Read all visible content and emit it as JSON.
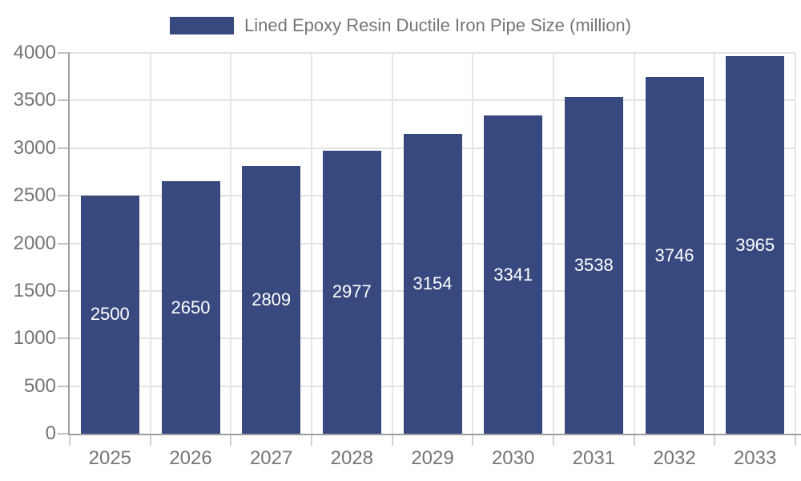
{
  "chart_data": {
    "type": "bar",
    "title": "Lined Epoxy Resin Ductile Iron Pipe Size (million)",
    "categories": [
      "2025",
      "2026",
      "2027",
      "2028",
      "2029",
      "2030",
      "2031",
      "2032",
      "2033"
    ],
    "values": [
      2500,
      2650,
      2809,
      2977,
      3154,
      3341,
      3538,
      3746,
      3965
    ],
    "xlabel": "",
    "ylabel": "",
    "ylim": [
      0,
      4000
    ],
    "yticks": [
      0,
      500,
      1000,
      1500,
      2000,
      2500,
      3000,
      3500,
      4000
    ],
    "grid": true,
    "legend_position": "top-center",
    "value_label_position": "inside-middle"
  },
  "colors": {
    "bar": "#38497f",
    "axis_text": "#757575",
    "value_text": "#ffffff",
    "hgrid": "#e3e3e3",
    "vgrid": "#e6e6e6",
    "axis_line": "#9e9e9e",
    "y_tick": "#c0c0c0",
    "x_tick": "#d0d0d0",
    "background": "#ffffff"
  }
}
